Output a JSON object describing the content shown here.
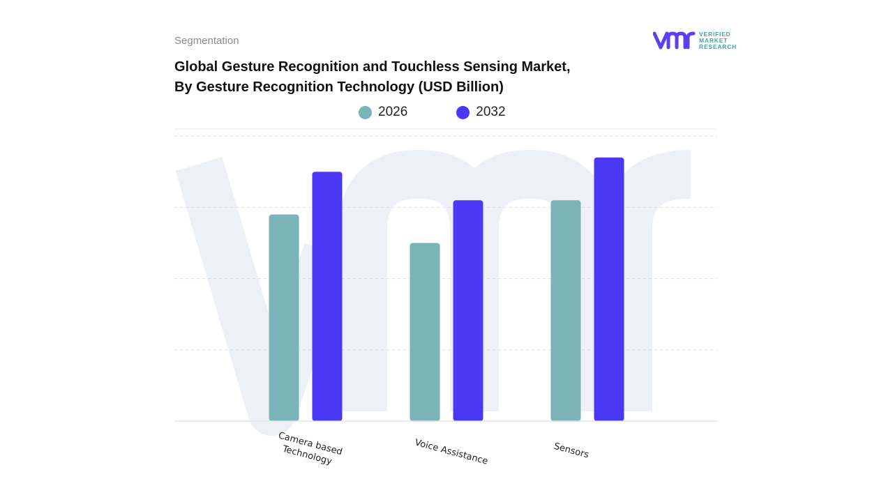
{
  "header": {
    "segment_label": "Segmentation",
    "title_line1": "Global Gesture Recognition and Touchless Sensing Market,",
    "title_line2": "By Gesture Recognition Technology (USD Billion)"
  },
  "logo": {
    "mark": "vmr",
    "line1": "VERIFIED",
    "line2": "MARKET",
    "line3": "RESEARCH",
    "icon": "vmr-logo-icon",
    "color_mark": "#5b3ff5",
    "color_text": "#3fa7a0"
  },
  "colors": {
    "series_2026": "#7ab4b8",
    "series_2032": "#4b38f5",
    "watermark": "#eef0f8",
    "grid": "#dddddd"
  },
  "chart_data": {
    "type": "bar",
    "title": "Global Gesture Recognition and Touchless Sensing Market, By Gesture Recognition Technology (USD Billion)",
    "xlabel": "",
    "ylabel": "",
    "categories": [
      "Camera based Technology",
      "Voice Assistance",
      "Sensors"
    ],
    "category_lines": [
      [
        "Camera based",
        "Technology"
      ],
      [
        "Voice Assistance"
      ],
      [
        "Sensors"
      ]
    ],
    "series": [
      {
        "name": "2026",
        "values": [
          2.9,
          2.5,
          3.1
        ]
      },
      {
        "name": "2032",
        "values": [
          3.5,
          3.1,
          3.7
        ]
      }
    ],
    "ylim": [
      0,
      4.1
    ],
    "yticks": [
      0,
      1,
      2,
      3,
      4
    ],
    "grid": true,
    "y_tick_labels_visible": false,
    "legend_position": "top-center"
  }
}
